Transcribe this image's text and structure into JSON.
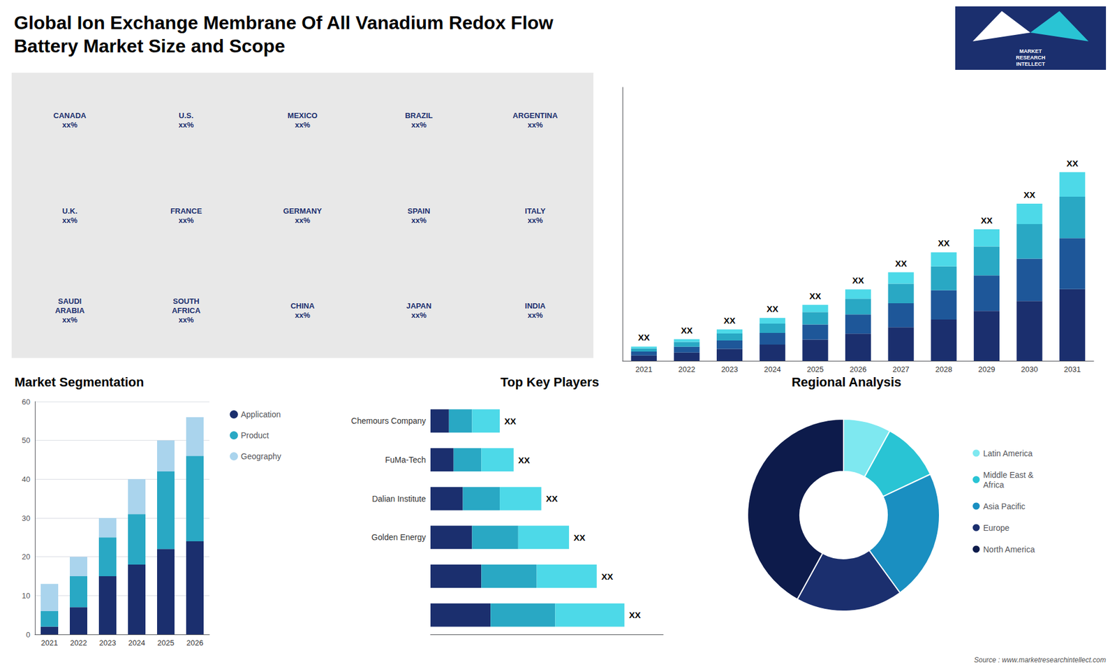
{
  "chart_data": [
    {
      "type": "page",
      "title": "Global Ion Exchange Membrane Of All Vanadium Redox Flow\nBattery Market Size and Scope",
      "annotations": [
        "MARKET\nRESEARCH\nINTELLECT",
        "Source : www.marketresearchintellect.com"
      ]
    },
    {
      "type": "map",
      "annotations": [
        "CANADA\nxx%",
        "U.S.\nxx%",
        "MEXICO\nxx%",
        "BRAZIL\nxx%",
        "ARGENTINA\nxx%",
        "U.K.\nxx%",
        "FRANCE\nxx%",
        "GERMANY\nxx%",
        "SPAIN\nxx%",
        "ITALY\nxx%",
        "SAUDI\nARABIA\nxx%",
        "SOUTH\nAFRICA\nxx%",
        "CHINA\nxx%",
        "JAPAN\nxx%",
        "INDIA\nxx%"
      ]
    },
    {
      "type": "bar",
      "stacked": true,
      "categories": [
        "2021",
        "2022",
        "2023",
        "2024",
        "2025",
        "2026",
        "2027",
        "2028",
        "2029",
        "2030",
        "2031"
      ],
      "series": [
        {
          "color": "#1b2f6e",
          "values": [
            0.95,
            1.444,
            2.09,
            2.85,
            3.724,
            4.75,
            5.89,
            7.22,
            8.74,
            10.45,
            12.54
          ]
        },
        {
          "color": "#1e5799",
          "values": [
            0.675,
            1.026,
            1.485,
            2.025,
            2.646,
            3.375,
            4.185,
            5.13,
            6.21,
            7.425,
            8.91
          ]
        },
        {
          "color": "#29a8c4",
          "values": [
            0.55,
            0.836,
            1.21,
            1.65,
            2.156,
            2.75,
            3.41,
            4.18,
            5.06,
            6.05,
            7.26
          ]
        },
        {
          "color": "#4dd9e8",
          "values": [
            0.325,
            0.494,
            0.715,
            0.975,
            1.274,
            1.625,
            2.015,
            2.47,
            2.99,
            3.575,
            4.29
          ]
        }
      ],
      "ylim": [
        0,
        47.85
      ],
      "annotations": [
        "XX",
        "XX",
        "XX",
        "XX",
        "XX",
        "XX",
        "XX",
        "XX",
        "XX",
        "XX",
        "XX"
      ],
      "tick_labels": "x",
      "grid": false
    },
    {
      "type": "bar",
      "title": "Market Segmentation",
      "stacked": true,
      "categories": [
        "2021",
        "2022",
        "2023",
        "2024",
        "2025",
        "2026"
      ],
      "series": [
        {
          "name": "Application",
          "color": "#1b2f6e",
          "values": [
            2,
            7,
            15,
            18,
            22,
            24
          ]
        },
        {
          "name": "Product",
          "color": "#29a8c4",
          "values": [
            4,
            8,
            10,
            13,
            20,
            22
          ]
        },
        {
          "name": "Geography",
          "color": "#aad4ed",
          "values": [
            7,
            5,
            5,
            9,
            8,
            10
          ]
        }
      ],
      "ylim": [
        0,
        60
      ],
      "yticks": [
        0,
        10,
        20,
        30,
        40,
        50,
        60
      ],
      "grid": true,
      "legend": "right"
    },
    {
      "type": "bar",
      "title": "Top Key Players",
      "orientation": "horizontal",
      "stacked": true,
      "categories": [
        "Chemours Company",
        "FuMa-Tech",
        "Dalian Institute",
        "Golden Energy",
        null,
        null
      ],
      "series": [
        {
          "color": "#1b2f6e",
          "values": [
            2.0,
            2.5,
            3.5,
            4.5,
            5.5,
            6.5
          ]
        },
        {
          "color": "#29a8c4",
          "values": [
            2.5,
            3.0,
            4.0,
            5.0,
            6.0,
            7.0
          ]
        },
        {
          "color": "#4dd9e8",
          "values": [
            3.0,
            3.5,
            4.5,
            5.5,
            6.5,
            7.5
          ]
        }
      ],
      "xlim": [
        0,
        25.2
      ],
      "annotations": [
        "XX",
        "XX",
        "XX",
        "XX",
        "XX",
        "XX"
      ],
      "tick_labels": "y",
      "grid": false
    },
    {
      "type": "pie",
      "title": "Regional Analysis",
      "categories": [
        "Latin America",
        "Middle East &\nAfrica",
        "Asia Pacific",
        "Europe",
        "North America"
      ],
      "values": [
        8,
        10,
        22,
        18,
        42
      ],
      "colors": [
        "#7ee8f0",
        "#29c4d4",
        "#1a8fc1",
        "#1b2f6e",
        "#0d1b4b"
      ],
      "legend": "right"
    }
  ]
}
